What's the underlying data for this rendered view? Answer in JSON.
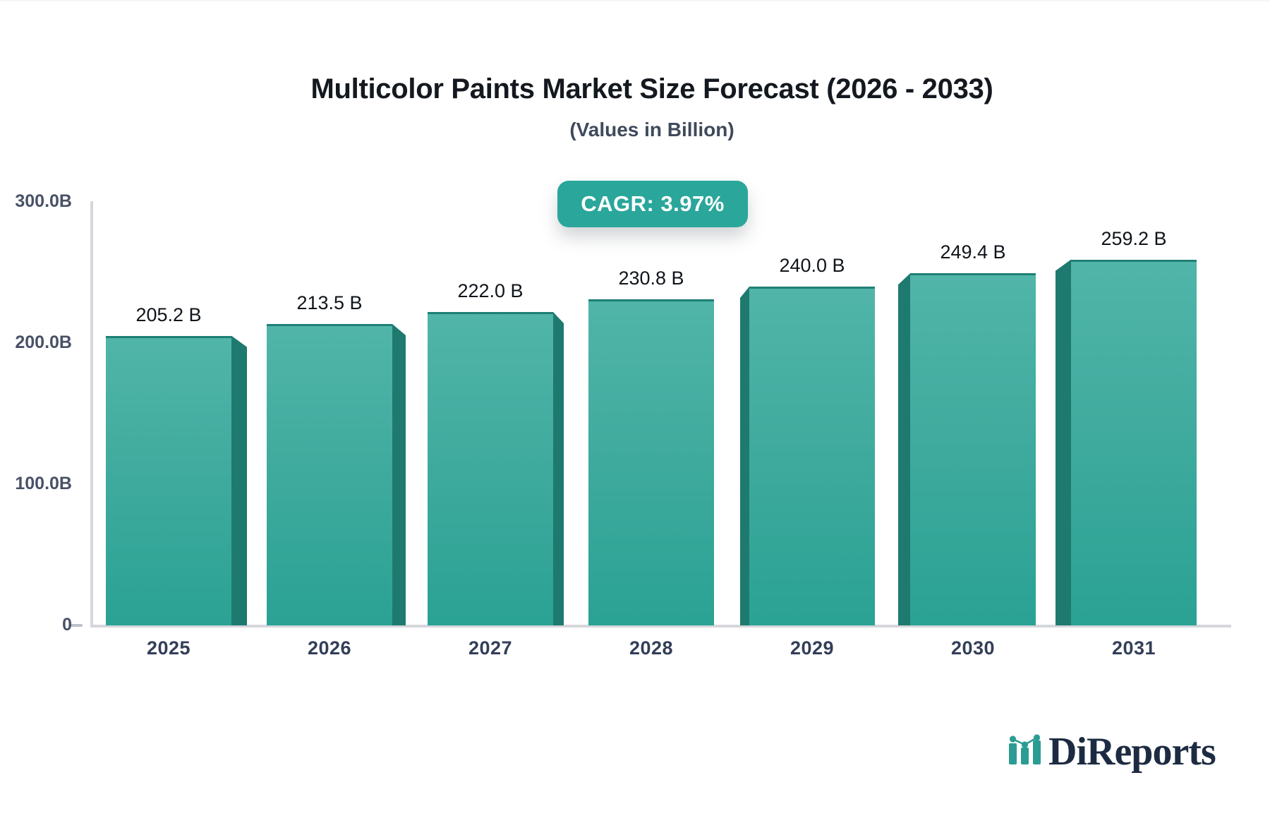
{
  "header": {
    "title": "Multicolor Paints Market Size Forecast (2026 - 2033)",
    "subtitle": "(Values in Billion)",
    "cagr_badge": "CAGR: 3.97%"
  },
  "chart_data": {
    "type": "bar",
    "categories": [
      "2025",
      "2026",
      "2027",
      "2028",
      "2029",
      "2030",
      "2031"
    ],
    "values": [
      205.2,
      213.5,
      222.0,
      230.8,
      240.0,
      249.4,
      259.2
    ],
    "value_labels": [
      "205.2 B",
      "213.5 B",
      "222.0 B",
      "230.8 B",
      "240.0 B",
      "249.4 B",
      "259.2 B"
    ],
    "y_ticks": [
      {
        "label": "300.0B",
        "value": 300
      },
      {
        "label": "200.0B",
        "value": 200
      },
      {
        "label": "100.0B",
        "value": 100
      },
      {
        "label": "0",
        "value": 0
      }
    ],
    "ylim": [
      0,
      300
    ],
    "grid": false,
    "legend": false,
    "bar_style": "3d-bevel",
    "title": "Multicolor Paints Market Size Forecast (2026 - 2033)",
    "subtitle": "(Values in Billion)",
    "colors": {
      "bar_gradient_top": "#51b5a9",
      "bar_gradient_bottom": "#2aa294",
      "bar_top_edge": "#1f8075",
      "bar_side_face": "#1e7a6f",
      "axis_line": "#d5d7dc",
      "badge_background": "#2aa69b",
      "badge_text": "#ffffff",
      "tick_text": "#485166",
      "category_text": "#333e58",
      "value_text": "#10151b"
    }
  },
  "branding": {
    "logo_text": "DiReports",
    "logo_icon": "mini-bar-line-chart-icon",
    "logo_text_color": "#1d2b42",
    "logo_accent_color": "#2b9c92"
  }
}
